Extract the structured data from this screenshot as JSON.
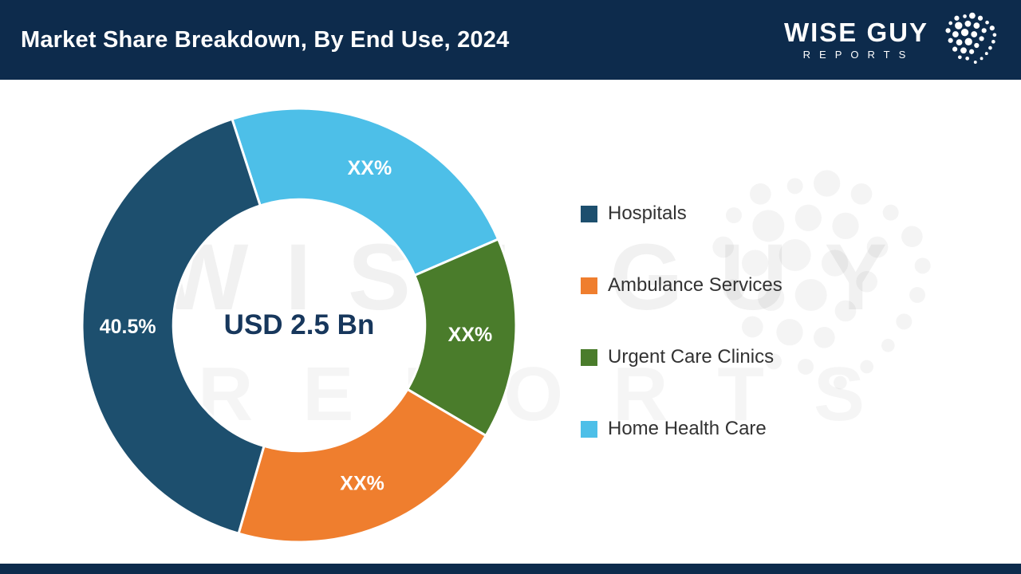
{
  "header": {
    "title": "Market Share Breakdown, By End Use, 2024",
    "logo": {
      "line1": "WISE GUY",
      "line2": "REPORTS"
    }
  },
  "watermark": {
    "line1": "WISE GUY",
    "line2": "REPORTS"
  },
  "chart_data": {
    "type": "pie",
    "subtype": "donut",
    "title": "Market Share Breakdown, By End Use, 2024",
    "center_label": "USD 2.5 Bn",
    "legend_position": "right",
    "start_angle_deg": -18,
    "inner_radius_ratio": 0.58,
    "segments": [
      {
        "name": "Home Health Care",
        "value": 23.5,
        "label": "XX%",
        "color": "#4dbfe8"
      },
      {
        "name": "Urgent Care Clinics",
        "value": 15.0,
        "label": "XX%",
        "color": "#4a7c2b"
      },
      {
        "name": "Ambulance Services",
        "value": 21.0,
        "label": "XX%",
        "color": "#ef7e2e"
      },
      {
        "name": "Hospitals",
        "value": 40.5,
        "label": "40.5%",
        "color": "#1d4f6e"
      }
    ]
  },
  "legend": {
    "items": [
      {
        "label": "Hospitals",
        "color": "#1d4f6e"
      },
      {
        "label": "Ambulance Services",
        "color": "#ef7e2e"
      },
      {
        "label": "Urgent Care Clinics",
        "color": "#4a7c2b"
      },
      {
        "label": "Home Health Care",
        "color": "#4dbfe8"
      }
    ]
  }
}
